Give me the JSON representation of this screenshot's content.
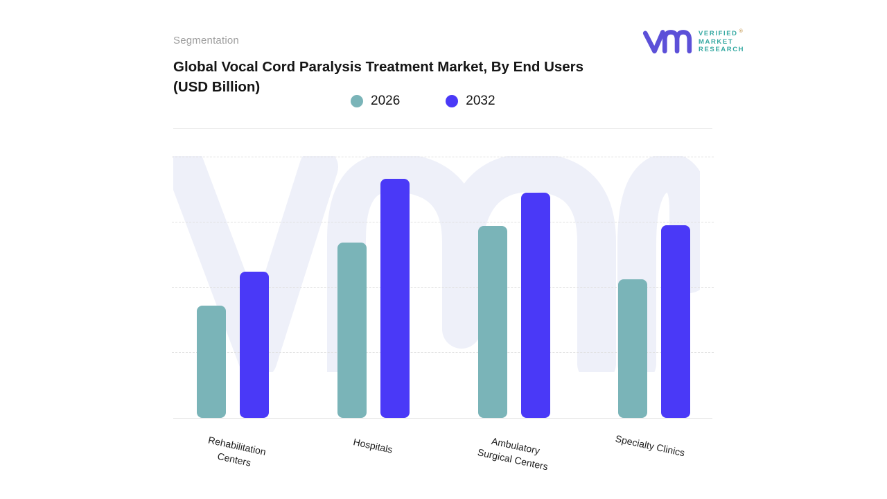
{
  "header": {
    "eyebrow": "Segmentation",
    "title_line1": "Global Vocal Cord Paralysis Treatment Market, By End Users",
    "title_line2": "(USD Billion)"
  },
  "logo": {
    "glyph": "vmr-monogram",
    "line1": "VERIFIED",
    "registered_mark": "®",
    "line2": "MARKET",
    "line3": "RESEARCH",
    "glyph_color": "#5c50d8",
    "text_color": "#35a9a2"
  },
  "colors": {
    "series_2026": "#7ab4b8",
    "series_2032": "#4a39f7",
    "watermark": "#eef0f9",
    "gridline": "#e0e0e0",
    "divider": "#ececec",
    "title_text": "#151515",
    "eyebrow_text": "#9e9e9e"
  },
  "chart_data": {
    "type": "bar",
    "title": "Global Vocal Cord Paralysis Treatment Market, By End Users (USD Billion)",
    "categories": [
      "Rehabilitation Centers",
      "Hospitals",
      "Ambulatory Surgical Centers",
      "Specialty Clinics"
    ],
    "category_label_lines": [
      [
        "Rehabilitation",
        "Centers"
      ],
      [
        "Hospitals"
      ],
      [
        "Ambulatory",
        "Surgical Centers"
      ],
      [
        "Specialty Clinics"
      ]
    ],
    "series": [
      {
        "name": "2026",
        "color": "#7ab4b8",
        "values": [
          1.72,
          2.69,
          2.95,
          2.13
        ]
      },
      {
        "name": "2032",
        "color": "#4a39f7",
        "values": [
          2.24,
          3.67,
          3.46,
          2.96
        ]
      }
    ],
    "xlabel": "",
    "ylabel": "",
    "units": "relative units (y-axis unlabeled)",
    "ylim": [
      0,
      4.02
    ],
    "y_ticks_shown": false,
    "gridlines": "horizontal dashed at 1, 2, 3, 4",
    "legend_position": "top-center",
    "legend": [
      "2026",
      "2032"
    ]
  }
}
